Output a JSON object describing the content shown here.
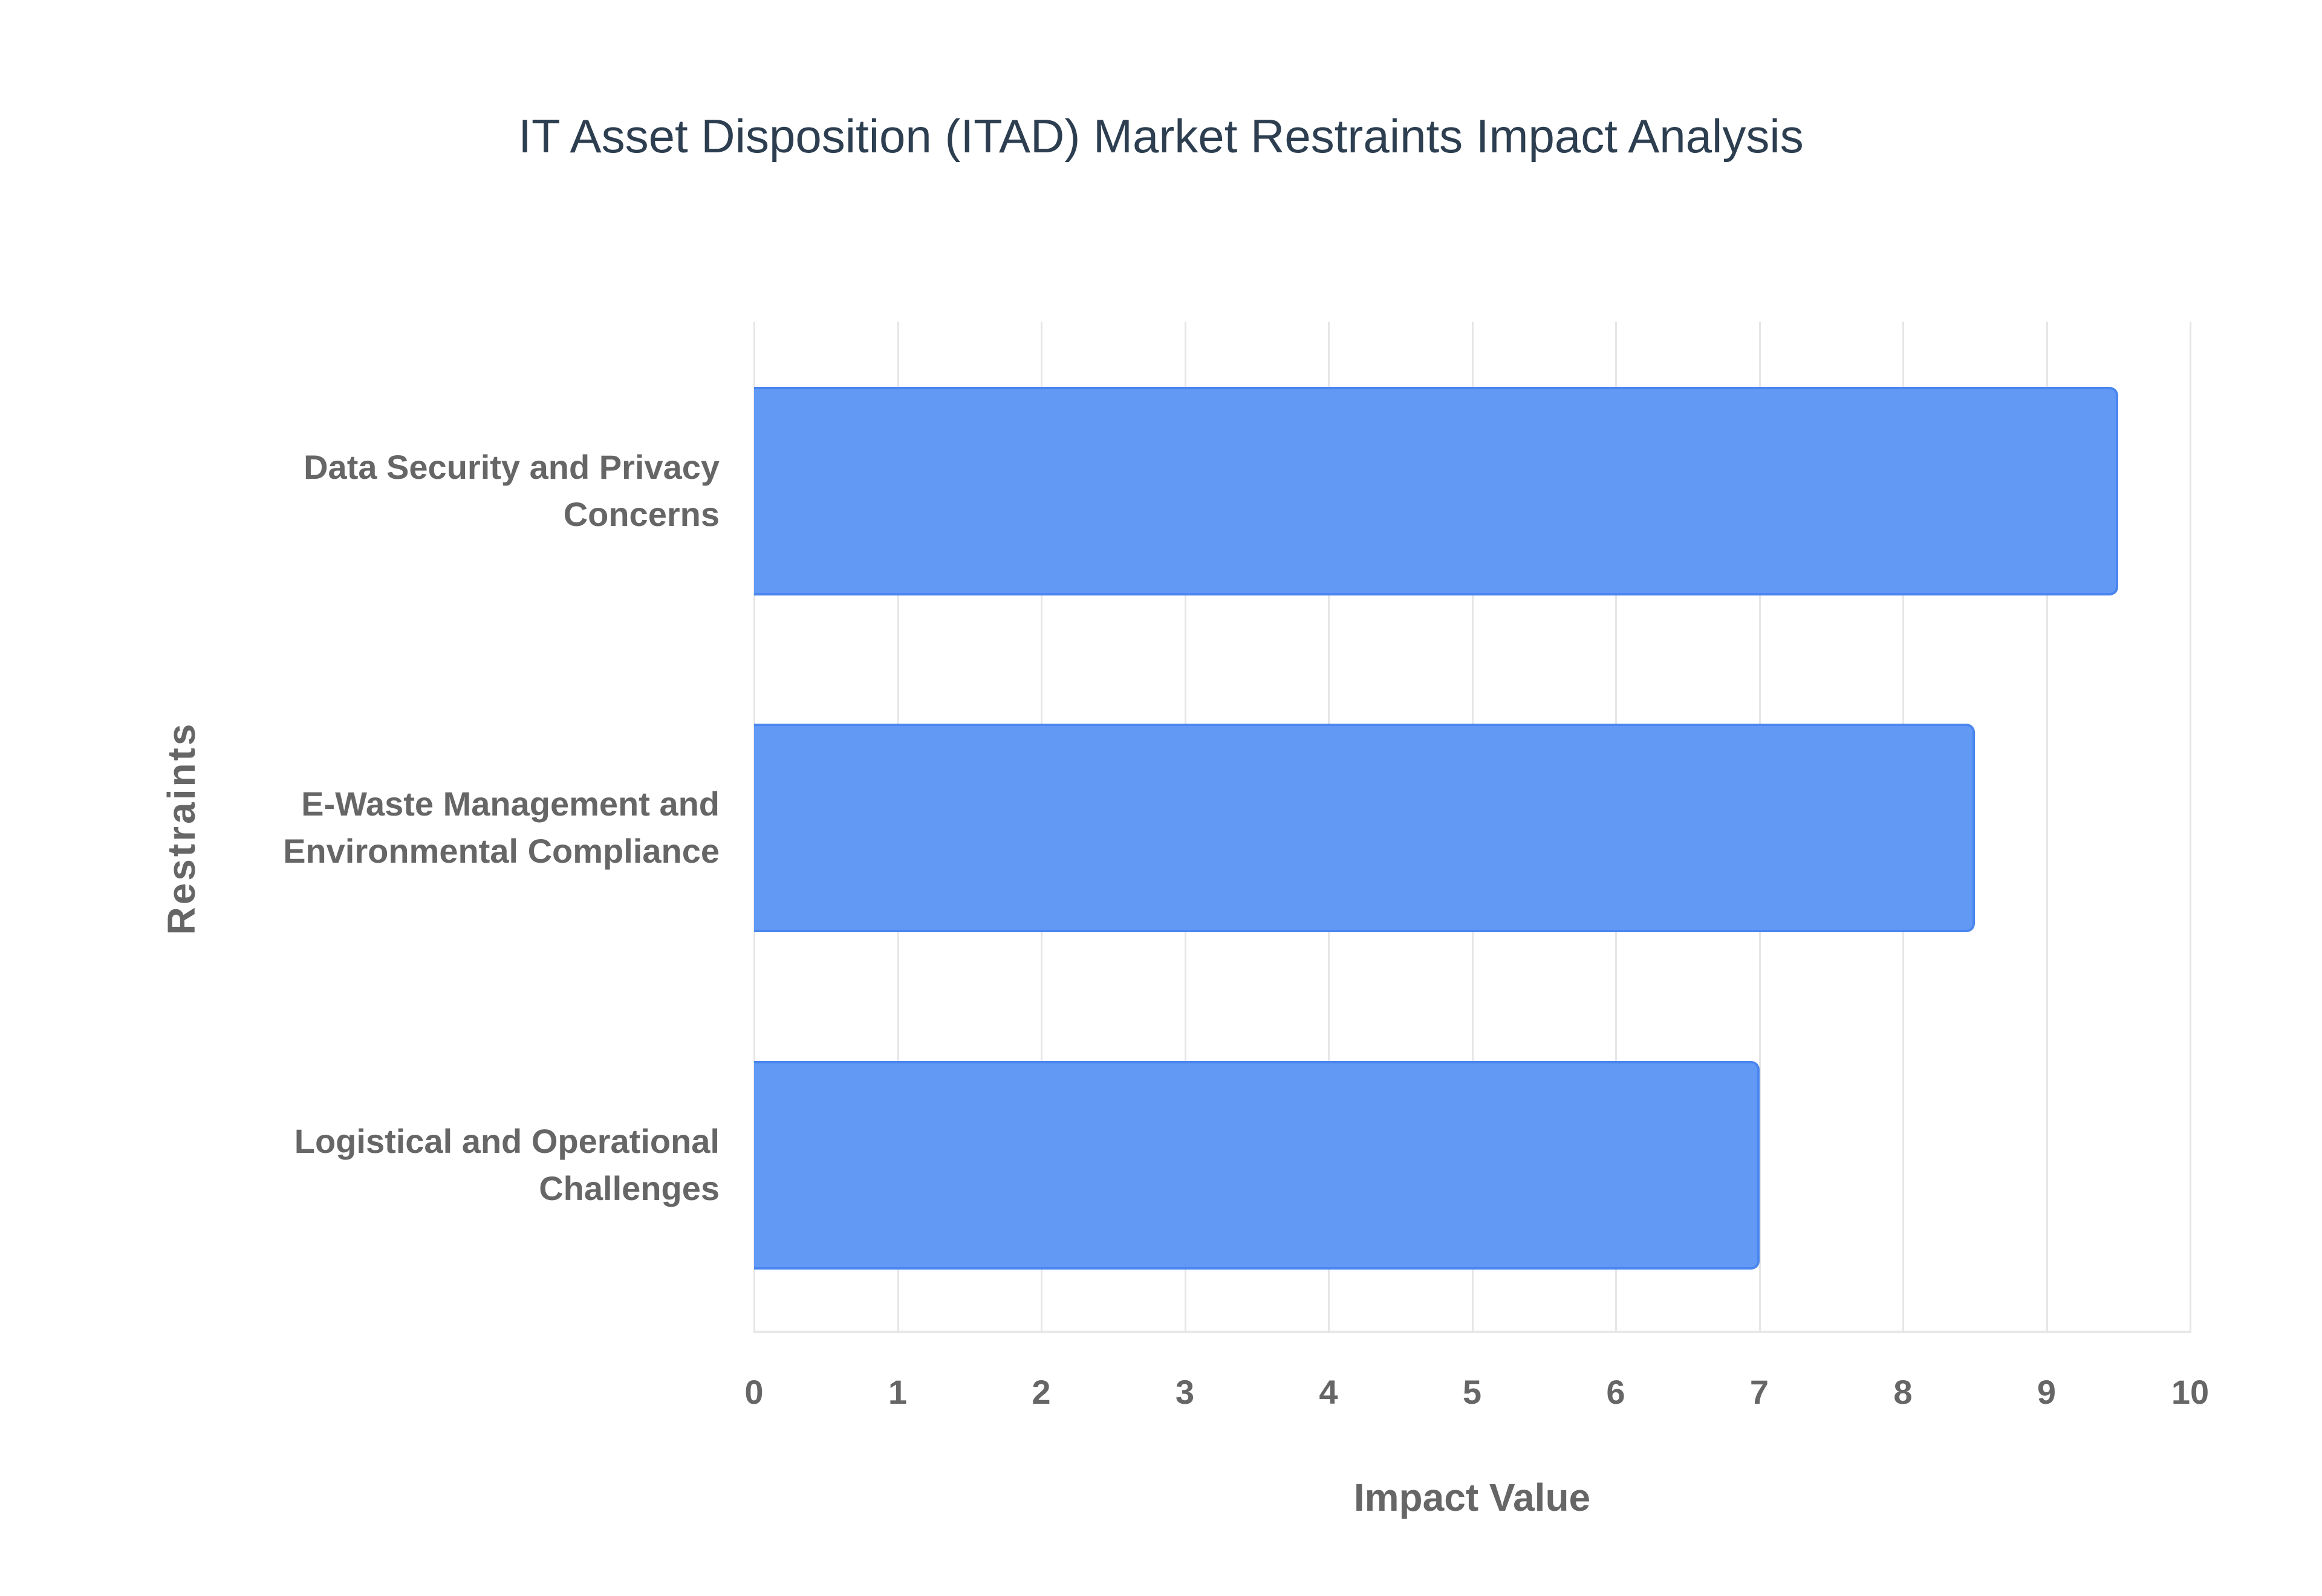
{
  "chart_data": {
    "type": "bar",
    "orientation": "horizontal",
    "title": "IT Asset Disposition (ITAD) Market Restraints Impact Analysis",
    "xlabel": "Impact Value",
    "ylabel": "Restraints",
    "categories": [
      "Data Security and Privacy Concerns",
      "E-Waste Management and Environmental Compliance",
      "Logistical and Operational Challenges"
    ],
    "category_lines": [
      [
        "Data Security and Privacy",
        "Concerns"
      ],
      [
        "E-Waste Management and",
        "Environmental Compliance"
      ],
      [
        "Logistical and Operational",
        "Challenges"
      ]
    ],
    "values": [
      9.5,
      8.5,
      7
    ],
    "xlim": [
      0,
      10
    ],
    "xticks": [
      "0",
      "1",
      "2",
      "3",
      "4",
      "5",
      "6",
      "7",
      "8",
      "9",
      "10"
    ],
    "grid": true,
    "legend": "none",
    "bar_color": "#6199f5",
    "bar_border_color": "#4a86ee"
  }
}
